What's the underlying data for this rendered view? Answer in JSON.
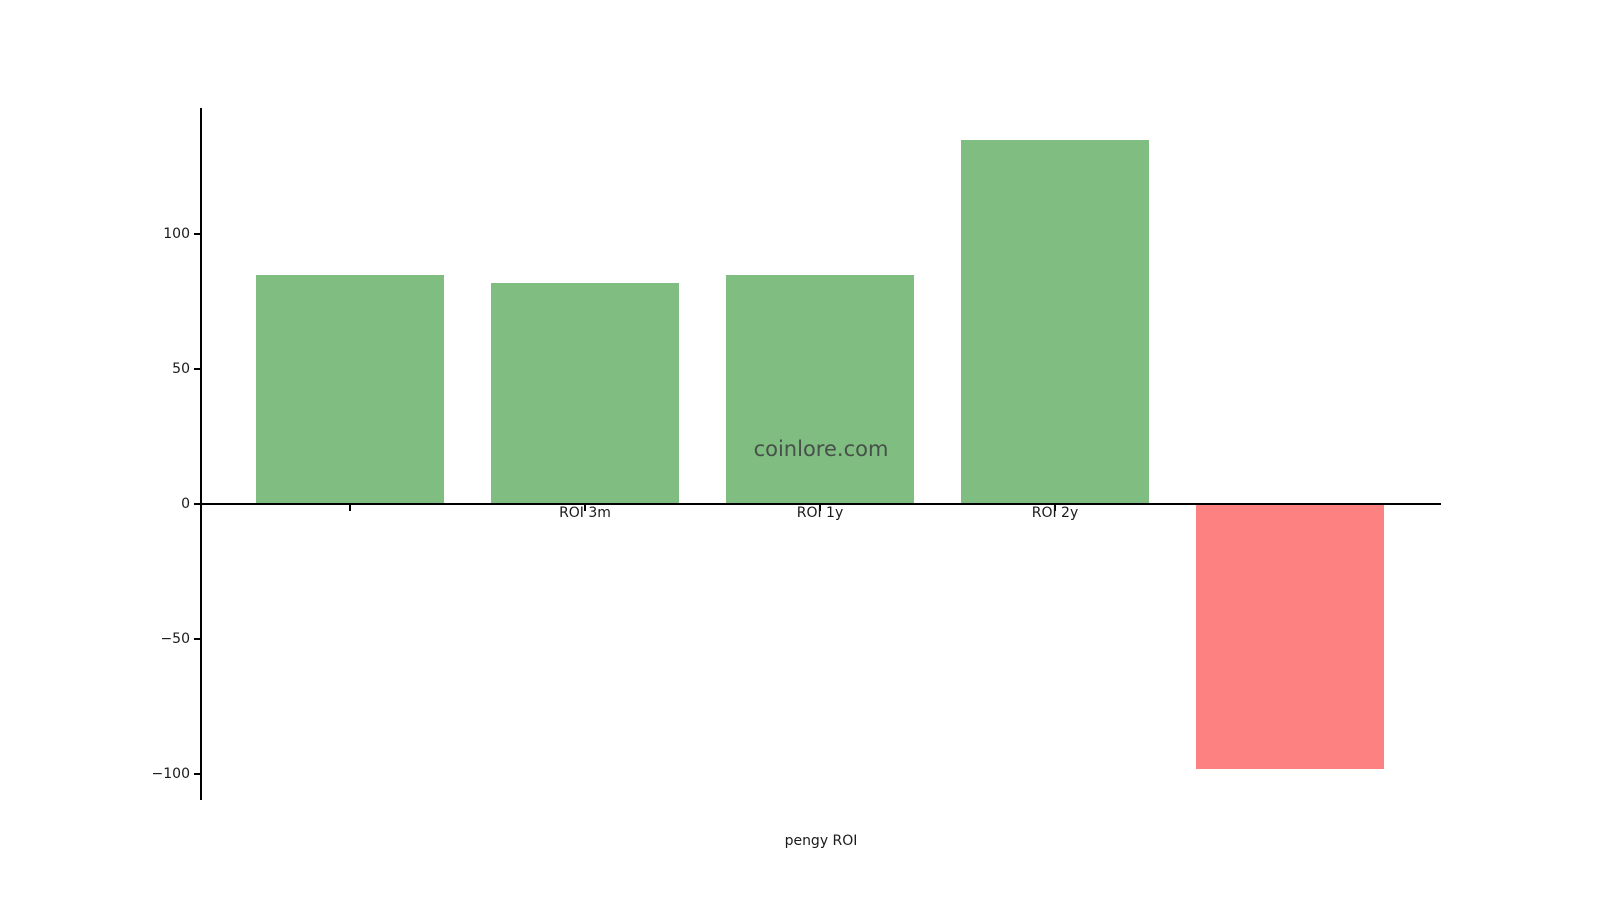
{
  "watermark": "coinlore.com",
  "chart_data": {
    "type": "bar",
    "title": "",
    "xlabel": "pengy ROI",
    "ylabel": "",
    "categories": [
      "",
      "ROI 3m",
      "ROI 1y",
      "ROI 2y",
      ""
    ],
    "values": [
      85,
      82,
      85,
      135,
      -98
    ],
    "yticks": [
      100,
      50,
      0,
      -50,
      -100
    ],
    "ylim": [
      -110,
      147
    ],
    "grid": false,
    "legend_position": "none",
    "bar_color_positive": "#80bd80",
    "bar_color_negative": "#fe8181",
    "axis_color": "#000000",
    "tick_text_color": "#1a1a1a",
    "watermark_color": "#47504a",
    "axis_note": "left spine and zero-line only; x tick labels drawn overlapping outward ticks; first and last bars have empty category labels"
  }
}
